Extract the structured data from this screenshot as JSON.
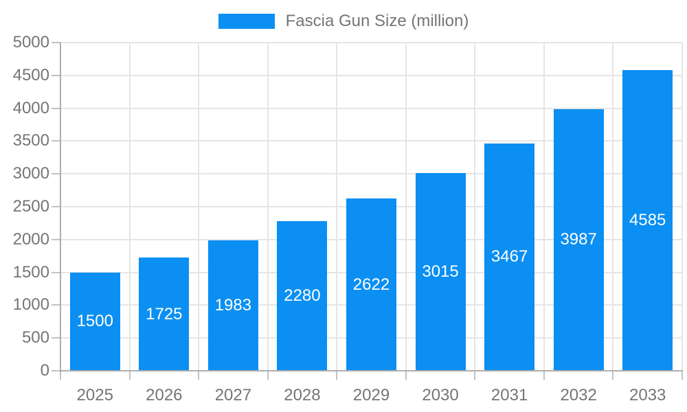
{
  "legend": {
    "label": "Fascia Gun Size (million)"
  },
  "chart_data": {
    "type": "bar",
    "title": "",
    "categories": [
      "2025",
      "2026",
      "2027",
      "2028",
      "2029",
      "2030",
      "2031",
      "2032",
      "2033"
    ],
    "series": [
      {
        "name": "Fascia Gun Size (million)",
        "values": [
          1500,
          1725,
          1983,
          2280,
          2622,
          3015,
          3467,
          3987,
          4585
        ]
      }
    ],
    "value_labels_shown": true,
    "xlabel": "",
    "ylabel": "",
    "ylim": [
      0,
      5000
    ],
    "y_ticks": [
      0,
      500,
      1000,
      1500,
      2000,
      2500,
      3000,
      3500,
      4000,
      4500,
      5000
    ],
    "grid": true,
    "legend_position": "top",
    "colors": {
      "bar": "#0B8FF2",
      "value_label": "#FFFFFF",
      "axis_text": "#757575",
      "gridline": "#E5E5E5",
      "axis_line": "#ADADAD",
      "tick_mark": "#C2C2C2",
      "background": "#FFFFFF"
    }
  }
}
